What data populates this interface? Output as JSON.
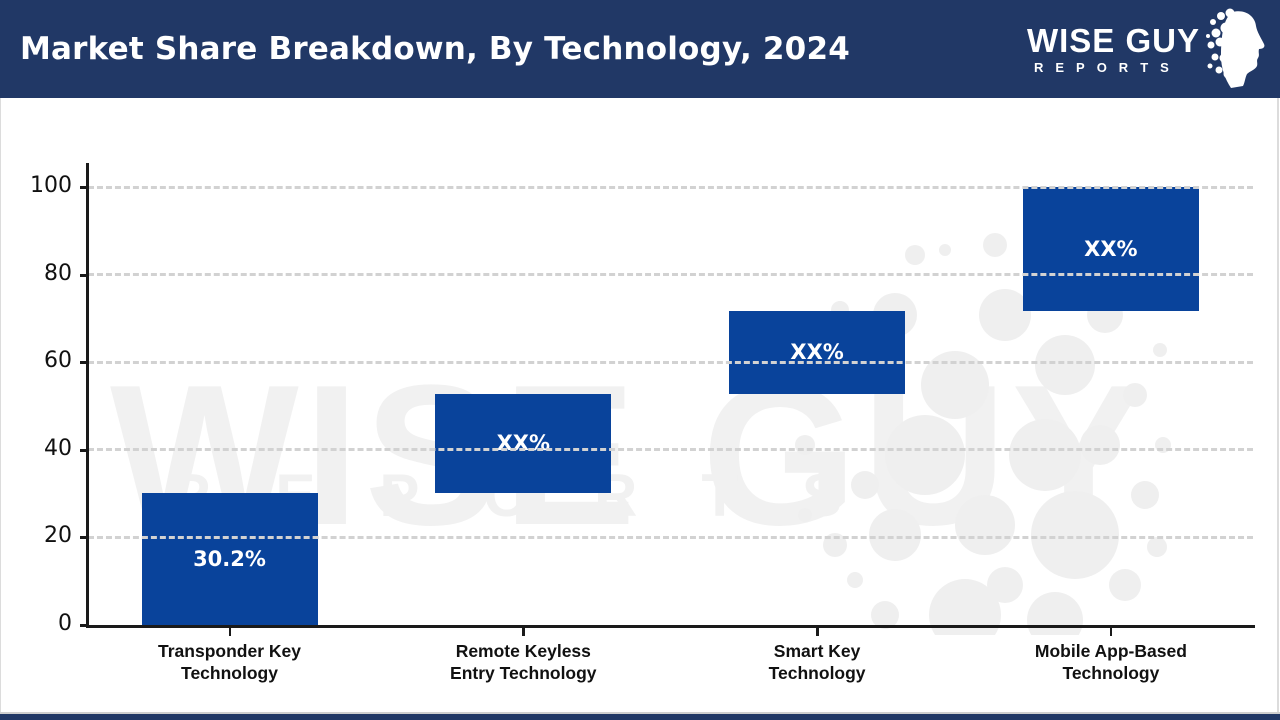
{
  "header": {
    "title": "Market Share Breakdown, By Technology, 2024",
    "logo": {
      "name": "WISE GUY",
      "sub": "REPORTS"
    }
  },
  "watermark": {
    "name": "WISE GUY",
    "sub": "REPORTS"
  },
  "chart_data": {
    "type": "bar",
    "subtype": "waterfall",
    "title": "Market Share Breakdown, By Technology, 2024",
    "categories": [
      "Transponder Key\nTechnology",
      "Remote Keyless\nEntry Technology",
      "Smart Key\nTechnology",
      "Mobile App-Based\nTechnology"
    ],
    "bars": [
      {
        "category": "Transponder Key\nTechnology",
        "start": 0,
        "end": 30.2,
        "label": "30.2%"
      },
      {
        "category": "Remote Keyless\nEntry Technology",
        "start": 30.2,
        "end": 52.8,
        "label": "XX%"
      },
      {
        "category": "Smart Key\nTechnology",
        "start": 52.8,
        "end": 71.7,
        "label": "XX%"
      },
      {
        "category": "Mobile App-Based\nTechnology",
        "start": 71.7,
        "end": 100,
        "label": "XX%"
      }
    ],
    "ylim": [
      0,
      100
    ],
    "yticks": [
      0,
      20,
      40,
      60,
      80,
      100
    ],
    "grid": "horizontal-dashed",
    "legend": "none"
  },
  "colors": {
    "header_bg": "#213866",
    "footer_bg": "#213866",
    "bar": "#09439b",
    "grid": "#d2d2d2",
    "axis": "#1a1a1a",
    "watermark": "#f1f1f1"
  }
}
